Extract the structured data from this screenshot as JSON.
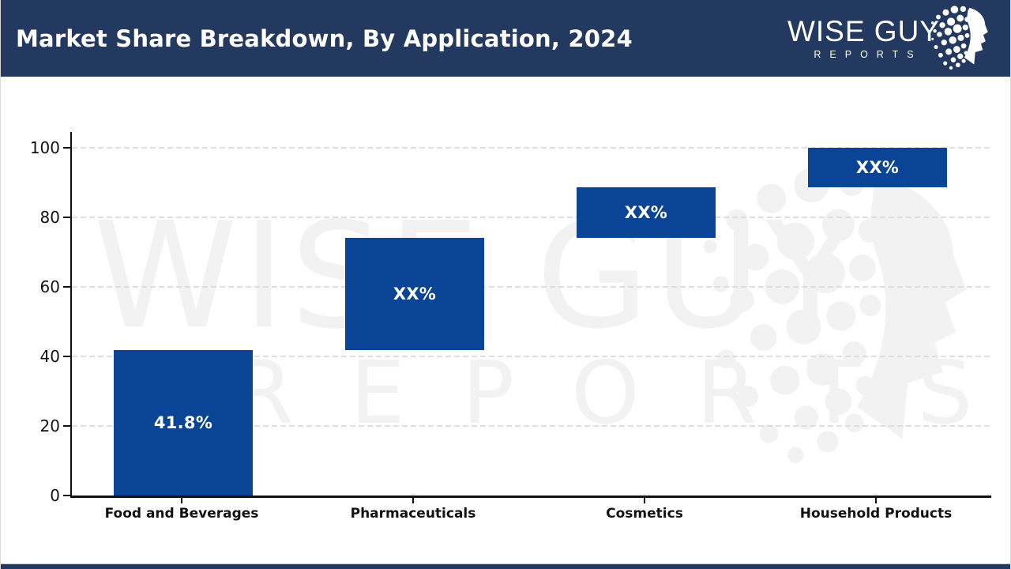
{
  "header": {
    "title": "Market Share Breakdown, By Application, 2024",
    "logo_line1": "WISE GUY",
    "logo_line2": "REPORTS"
  },
  "watermark": {
    "line1": "WISE GUY",
    "line2": "REPORTS"
  },
  "colors": {
    "header_background": "#23395f",
    "bar_blue": "#0a4496",
    "grid_line": "#dedede",
    "axis_text": "#111111",
    "bar_label_text": "#ffffff",
    "footer_bar": "#23395f",
    "watermark_gray": "#f2f2f3"
  },
  "chart_data": {
    "type": "bar",
    "subtype": "waterfall",
    "title": "Market Share Breakdown, By Application, 2024",
    "categories": [
      "Food and Beverages",
      "Pharmaceuticals",
      "Cosmetics",
      "Household Products"
    ],
    "segments": [
      {
        "category": "Food and Beverages",
        "start": 0,
        "end": 41.8,
        "label": "41.8%"
      },
      {
        "category": "Pharmaceuticals",
        "start": 41.8,
        "end": 74,
        "label": "XX%"
      },
      {
        "category": "Cosmetics",
        "start": 74,
        "end": 88.7,
        "label": "XX%"
      },
      {
        "category": "Household Products",
        "start": 88.7,
        "end": 100,
        "label": "XX%"
      }
    ],
    "xlabel": "",
    "ylabel": "",
    "yticks": [
      0,
      20,
      40,
      60,
      80,
      100
    ],
    "ytick_labels": [
      "0",
      "20",
      "40",
      "60",
      "80",
      "100"
    ],
    "ylim": [
      0,
      105
    ],
    "grid": "horizontal-dashed",
    "legend": null,
    "bar_labels_inside": true
  }
}
